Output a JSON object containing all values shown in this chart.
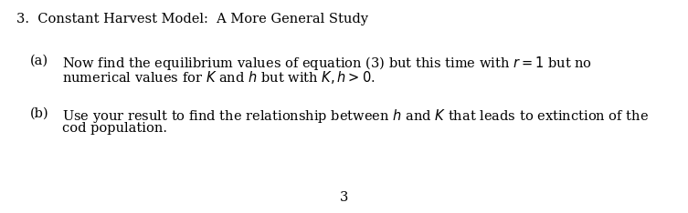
{
  "background_color": "#ffffff",
  "title_text": "3.  Constant Harvest Model:  A More General Study",
  "part_a_label": "(a)",
  "part_a_line1": "Now find the equilibrium values of equation (3) but this time with $r = 1$ but no",
  "part_a_line2": "numerical values for $K$ and $h$ but with $K, h > 0$.",
  "part_b_label": "(b)",
  "part_b_line1": "Use your result to find the relationship between $h$ and $K$ that leads to extinction of the",
  "part_b_line2": "cod population.",
  "page_number": "3",
  "text_color": "#000000",
  "title_fontsize": 10.5,
  "body_fontsize": 10.5,
  "page_fontsize": 10.5
}
